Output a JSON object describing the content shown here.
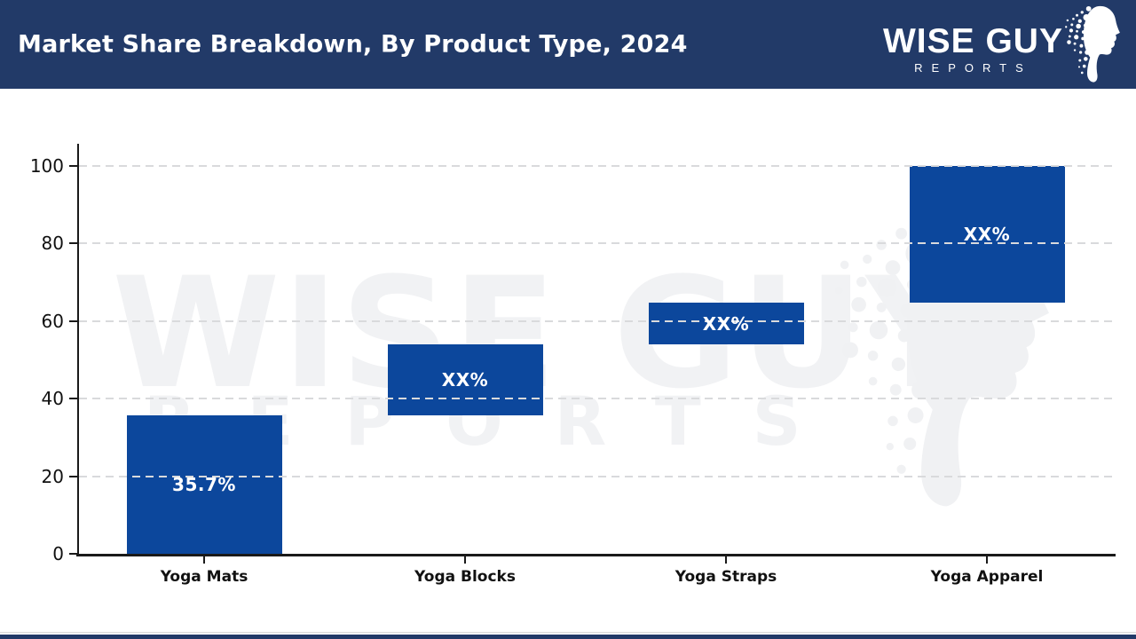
{
  "header": {
    "title": "Market Share Breakdown, By Product Type, 2024",
    "logo": {
      "line1": "WISE GUY",
      "line2": "REPORTS"
    }
  },
  "watermark": {
    "line1": "WISE GUY",
    "line2": "REPORTS"
  },
  "chart_data": {
    "type": "bar",
    "subtype": "waterfall",
    "title": "Market Share Breakdown, By Product Type, 2024",
    "categories": [
      "Yoga Mats",
      "Yoga Blocks",
      "Yoga Straps",
      "Yoga Apparel"
    ],
    "segments": [
      {
        "category": "Yoga Mats",
        "start": 0,
        "end": 35.7,
        "label": "35.7%"
      },
      {
        "category": "Yoga Blocks",
        "start": 35.7,
        "end": 54.0,
        "label": "XX%"
      },
      {
        "category": "Yoga Straps",
        "start": 54.0,
        "end": 64.6,
        "label": "XX%"
      },
      {
        "category": "Yoga Apparel",
        "start": 64.6,
        "end": 100,
        "label": "XX%"
      }
    ],
    "y_ticks": [
      0,
      20,
      40,
      60,
      80,
      100
    ],
    "ylim": [
      0,
      105
    ],
    "xlabel": "",
    "ylabel": "",
    "grid": "horizontal-dashed",
    "legend": "none",
    "bar_color": "#0c479c",
    "bar_label_color": "#ffffff"
  },
  "colors": {
    "header_bg": "#223a68",
    "footer_bar": "#223a68",
    "bar": "#0c479c",
    "grid": "#d9dadc",
    "axis": "#1a1a1a",
    "watermark": "#f1f2f4"
  }
}
